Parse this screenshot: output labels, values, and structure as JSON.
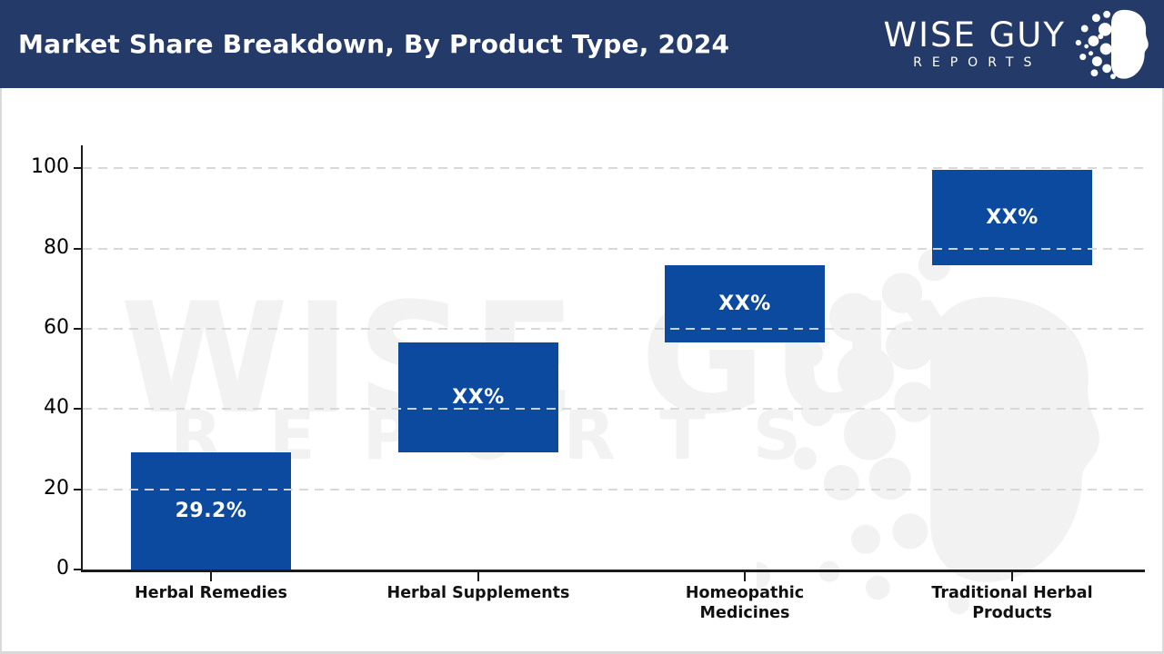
{
  "header": {
    "title": "Market Share Breakdown, By Product Type, 2024",
    "logo": {
      "line1": "WISE GUY",
      "line2": "REPORTS"
    }
  },
  "watermark": {
    "line1": "WISE GUY",
    "line2": "REPORTS"
  },
  "chart_data": {
    "type": "bar",
    "subtype": "waterfall",
    "title": "Market Share Breakdown, By Product Type, 2024",
    "categories": [
      "Herbal Remedies",
      "Herbal Supplements",
      "Homeopathic\nMedicines",
      "Traditional Herbal\nProducts"
    ],
    "segments": [
      {
        "category": "Herbal Remedies",
        "start": 0,
        "end": 29.2,
        "label": "29.2%"
      },
      {
        "category": "Herbal Supplements",
        "start": 29.2,
        "end": 56.6,
        "label": "XX%"
      },
      {
        "category": "Homeopathic Medicines",
        "start": 56.6,
        "end": 75.9,
        "label": "XX%"
      },
      {
        "category": "Traditional Herbal Products",
        "start": 75.9,
        "end": 99.6,
        "label": "XX%"
      }
    ],
    "xlabel": "",
    "ylabel": "",
    "yticks": [
      0,
      20,
      40,
      60,
      80,
      100
    ],
    "ylim": [
      0,
      105
    ],
    "grid": "horizontal-dashed",
    "legend": "none",
    "colors": {
      "bar": "#0b4a9e",
      "header_bg": "#243a68",
      "grid": "#d7d7d7",
      "axis": "#1a1a1a",
      "bar_label": "#ffffff",
      "watermark": "#f2f2f2"
    }
  }
}
